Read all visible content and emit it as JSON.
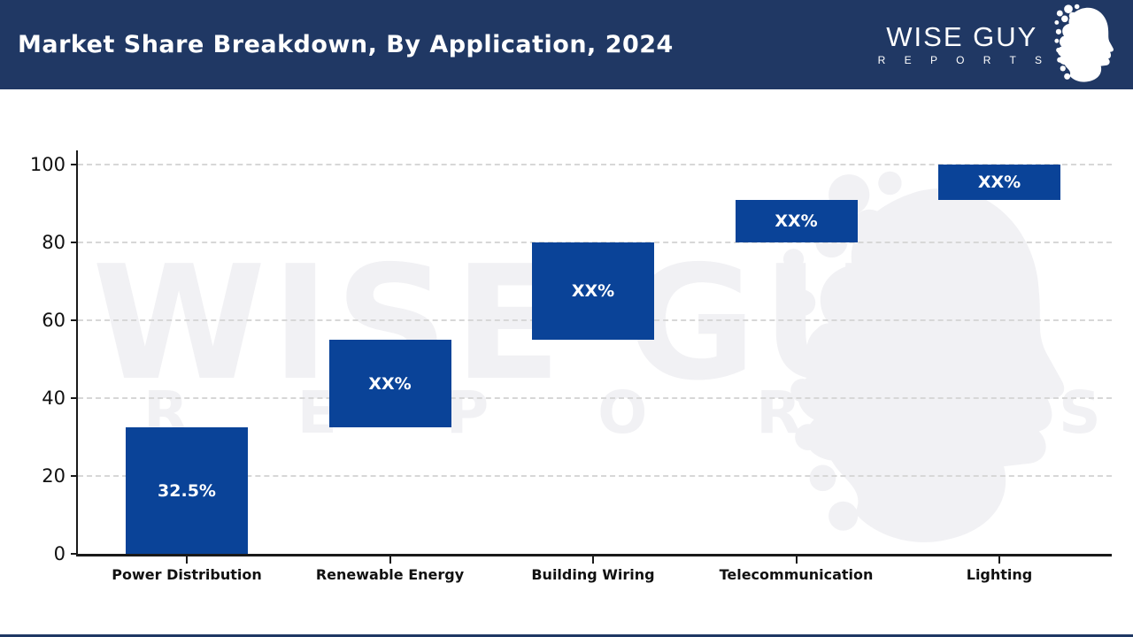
{
  "header": {
    "title": "Market Share Breakdown, By Application, 2024",
    "logo": {
      "name": "WISE GUY",
      "tagline": "R E P O R T S"
    }
  },
  "watermark": {
    "line1": "WISE GUY",
    "line2": "R E P O R T S"
  },
  "chart_data": {
    "type": "bar",
    "subtype": "waterfall",
    "title": "Market Share Breakdown, By Application, 2024",
    "categories": [
      "Power Distribution",
      "Renewable Energy",
      "Building Wiring",
      "Telecommunication",
      "Lighting"
    ],
    "segments": [
      {
        "category": "Power Distribution",
        "start": 0,
        "end": 32.5,
        "label": "32.5%"
      },
      {
        "category": "Renewable Energy",
        "start": 32.5,
        "end": 55,
        "label": "XX%"
      },
      {
        "category": "Building Wiring",
        "start": 55,
        "end": 80,
        "label": "XX%"
      },
      {
        "category": "Telecommunication",
        "start": 80,
        "end": 91,
        "label": "XX%"
      },
      {
        "category": "Lighting",
        "start": 91,
        "end": 100,
        "label": "XX%"
      }
    ],
    "yticks": [
      0,
      20,
      40,
      60,
      80,
      100
    ],
    "ylim": [
      0,
      104
    ],
    "grid": true,
    "legend": "none",
    "xlabel": "",
    "ylabel": ""
  },
  "colors": {
    "header_bg": "#203864",
    "bar_fill": "#0a4398",
    "bar_label": "#ffffff",
    "axis": "#1a1a1a",
    "grid": "#d7d7d7",
    "watermark": "#f1f1f4",
    "footer_bar": "#1f3864"
  }
}
